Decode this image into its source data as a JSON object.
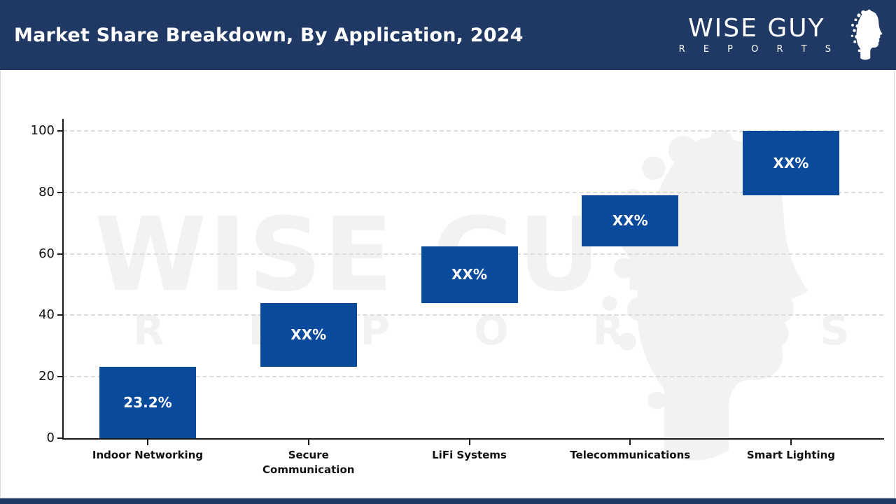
{
  "header": {
    "title": "Market Share Breakdown, By Application, 2024",
    "logo": {
      "line1": "WISE GUY",
      "line2": "R E P O R T S"
    }
  },
  "watermark": {
    "line1": "WISE GUY",
    "line2": "R E P O R T S"
  },
  "colors": {
    "navy": "#1f3864",
    "bar_blue": "#0a4a9c",
    "bar_label": "#ffffff",
    "watermark_gray": "#f2f2f2",
    "gridline_gray": "#dcdcdc",
    "axis_black": "#1a1a1a"
  },
  "chart_data": {
    "type": "bar",
    "variant": "waterfall",
    "title": "Market Share Breakdown, By Application, 2024",
    "xlabel": "",
    "ylabel": "",
    "ylim": [
      0,
      100
    ],
    "y_ticks": [
      0,
      20,
      40,
      60,
      80,
      100
    ],
    "grid": "horizontal-dashed",
    "legend": "none",
    "categories": [
      "Indoor Networking",
      "Secure Communication",
      "LiFi Systems",
      "Telecommunications",
      "Smart Lighting"
    ],
    "segments": [
      {
        "category": "Indoor Networking",
        "start": 0,
        "end": 23.2,
        "label": "23.2%"
      },
      {
        "category": "Secure Communication",
        "start": 23.2,
        "end": 44,
        "label": "XX%"
      },
      {
        "category": "LiFi Systems",
        "start": 44,
        "end": 62.5,
        "label": "XX%"
      },
      {
        "category": "Telecommunications",
        "start": 62.5,
        "end": 79,
        "label": "XX%"
      },
      {
        "category": "Smart Lighting",
        "start": 79,
        "end": 100,
        "label": "XX%"
      }
    ]
  }
}
